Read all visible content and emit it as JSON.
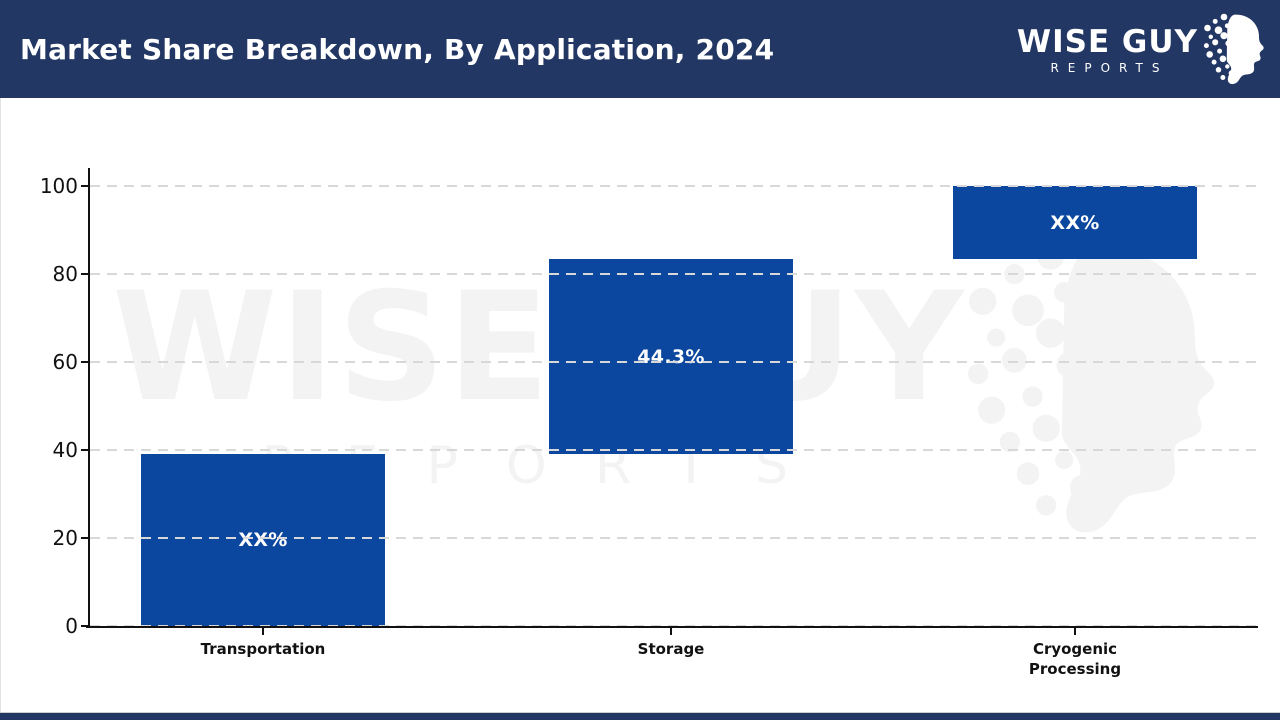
{
  "header": {
    "title": "Market Share Breakdown, By Application, 2024",
    "logo": {
      "line1": "WISE GUY",
      "line2": "REPORTS"
    }
  },
  "watermark": {
    "line1": "WISE GUY",
    "line2": "REPORTS"
  },
  "chart_data": {
    "type": "bar",
    "subtype": "waterfall",
    "title": "Market Share Breakdown, By Application, 2024",
    "categories": [
      "Transportation",
      "Storage",
      "Cryogenic\nProcessing"
    ],
    "segments": [
      {
        "category": "Transportation",
        "start": 0,
        "end": 39.0,
        "value_label": "XX%"
      },
      {
        "category": "Storage",
        "start": 39.0,
        "end": 83.3,
        "value_label": "44.3%"
      },
      {
        "category": "Cryogenic Processing",
        "start": 83.3,
        "end": 100.0,
        "value_label": "XX%"
      }
    ],
    "yticks": [
      0,
      20,
      40,
      60,
      80,
      100
    ],
    "ylim": [
      0,
      100
    ],
    "xlabel": "",
    "ylabel": "",
    "grid": "horizontal-dashed, drawn over bars",
    "legend": "none",
    "bar_color": "#0b479e",
    "bar_label_color": "#ffffff",
    "axis_color": "#111111",
    "grid_color": "#d8d8d8"
  },
  "colors": {
    "header_bg": "#223763",
    "footer_bg": "#223763",
    "title_text": "#ffffff",
    "bar": "#0b479e",
    "watermark": "#f1f1f2"
  }
}
